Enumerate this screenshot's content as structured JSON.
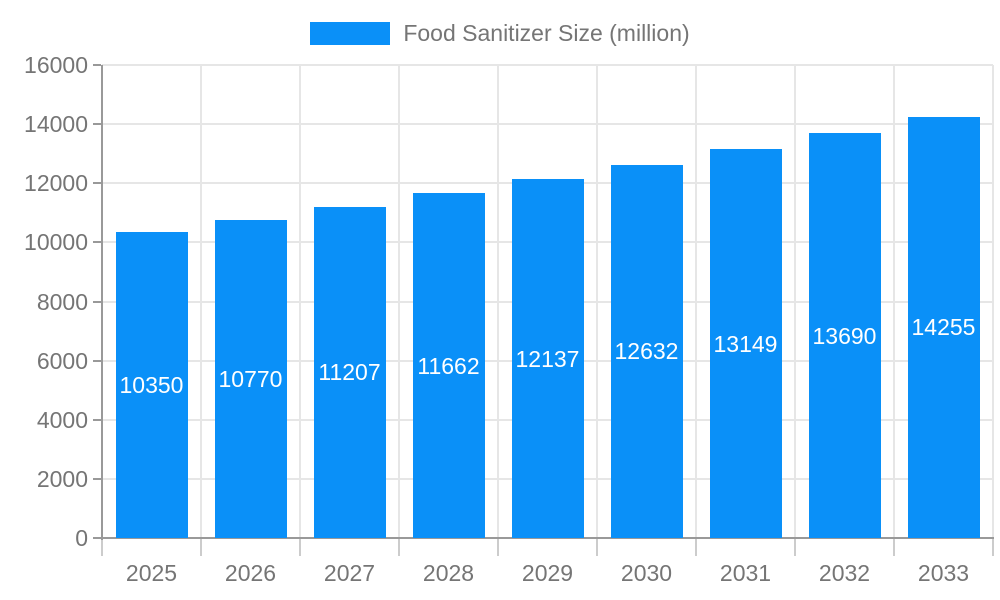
{
  "chart_data": {
    "type": "bar",
    "title": "Food Sanitizer Size (million)",
    "legend_position": "top",
    "categories": [
      "2025",
      "2026",
      "2027",
      "2028",
      "2029",
      "2030",
      "2031",
      "2032",
      "2033"
    ],
    "series": [
      {
        "name": "Food Sanitizer Size (million)",
        "values": [
          10350,
          10770,
          11207,
          11662,
          12137,
          12632,
          13149,
          13690,
          14255
        ]
      }
    ],
    "bar_value_labels": [
      "10350",
      "10770",
      "11207",
      "11662",
      "12137",
      "12632",
      "13149",
      "13690",
      "14255"
    ],
    "xlabel": "",
    "ylabel": "",
    "ylim": [
      0,
      16000
    ],
    "yticks": [
      0,
      2000,
      4000,
      6000,
      8000,
      10000,
      12000,
      14000,
      16000
    ],
    "grid": true,
    "colors": {
      "bar": "#0a90f8",
      "bar_label_text": "#ffffff",
      "axis_line": "#999999",
      "gridline": "#e6e6e6",
      "axis_tick": "#cccccc",
      "tick_text": "#757575",
      "legend_text": "#757575",
      "background": "#ffffff"
    }
  }
}
